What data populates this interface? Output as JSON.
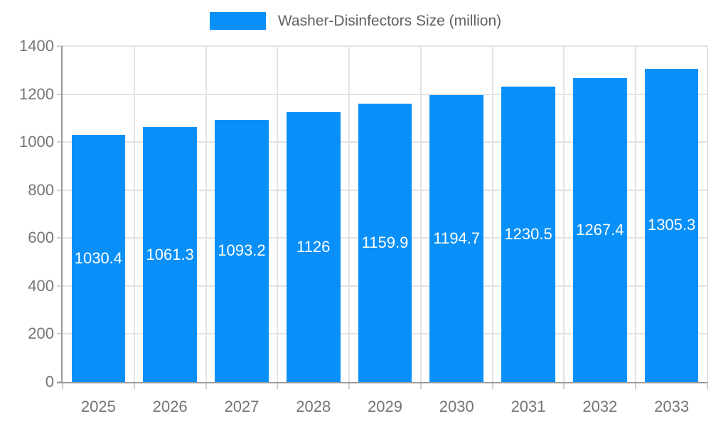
{
  "legend": {
    "label": "Washer-Disinfectors Size (million)"
  },
  "chart_data": {
    "type": "bar",
    "title": "Washer-Disinfectors Size (million)",
    "series_name": "Washer-Disinfectors Size (million)",
    "categories": [
      "2025",
      "2026",
      "2027",
      "2028",
      "2029",
      "2030",
      "2031",
      "2032",
      "2033"
    ],
    "values": [
      1030.4,
      1061.3,
      1093.2,
      1126,
      1159.9,
      1194.7,
      1230.5,
      1267.4,
      1305.3
    ],
    "xlabel": "",
    "ylabel": "",
    "ylim": [
      0,
      1400
    ],
    "yticks": [
      0,
      200,
      400,
      600,
      800,
      1000,
      1200,
      1400
    ],
    "grid": true,
    "legend_position": "top",
    "bar_labels": "inside-center",
    "colors": {
      "bar": "#0990f8",
      "bar_label": "#ffffff",
      "axis_label": "#757575",
      "gridline": "#e3e3e3",
      "axis_line": "#9a9a9a",
      "legend_text": "#616161"
    }
  }
}
